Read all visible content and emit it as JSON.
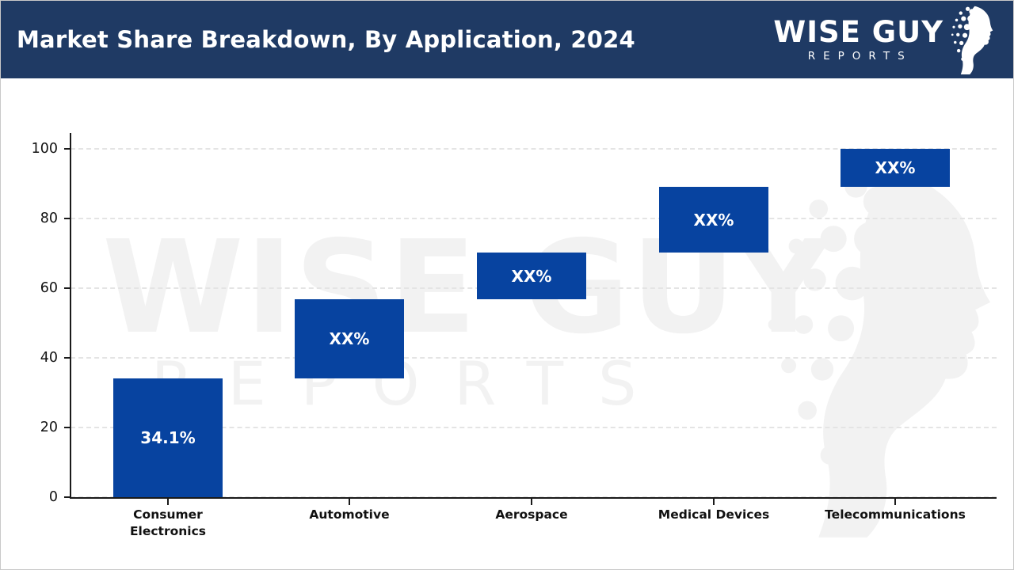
{
  "header": {
    "title": "Market Share Breakdown, By Application, 2024",
    "logo": {
      "line1": "WISE GUY",
      "line2": "REPORTS"
    }
  },
  "watermark": {
    "line1": "WISE GUY",
    "line2": "REPORTS"
  },
  "colors": {
    "header_bg": "#1f3a64",
    "bar": "#0743a0",
    "grid": "#e4e4e4",
    "axis": "#1a1a1a",
    "watermark": "#f2f2f2",
    "value_label": "#ffffff"
  },
  "chart_data": {
    "type": "bar",
    "subtype": "waterfall",
    "title": "Market Share Breakdown, By Application, 2024",
    "xlabel": "",
    "ylabel": "",
    "ylim": [
      0,
      100
    ],
    "yticks": [
      0,
      20,
      40,
      60,
      80,
      100
    ],
    "grid": "horizontal-dashed",
    "legend": "none",
    "categories": [
      "Consumer\nElectronics",
      "Automotive",
      "Aerospace",
      "Medical Devices",
      "Telecommunications"
    ],
    "segments": [
      {
        "category": "Consumer Electronics",
        "start": 0,
        "end": 34.1,
        "label": "34.1%"
      },
      {
        "category": "Automotive",
        "start": 34.1,
        "end": 56.8,
        "label": "XX%"
      },
      {
        "category": "Aerospace",
        "start": 56.8,
        "end": 70.2,
        "label": "XX%"
      },
      {
        "category": "Medical Devices",
        "start": 70.2,
        "end": 89.1,
        "label": "XX%"
      },
      {
        "category": "Telecommunications",
        "start": 89.1,
        "end": 100,
        "label": "XX%"
      }
    ]
  }
}
